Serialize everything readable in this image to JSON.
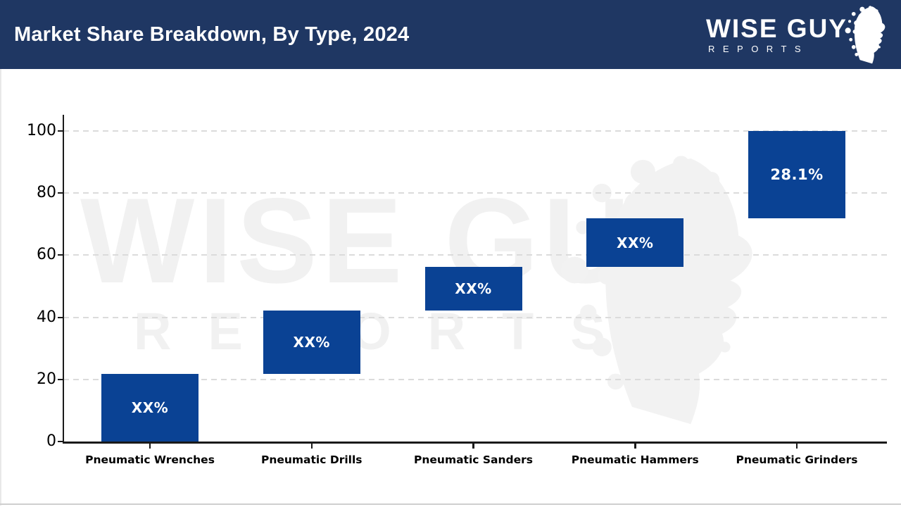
{
  "header": {
    "title": "Market Share Breakdown, By Type, 2024",
    "logo": {
      "line1": "WISE GUY",
      "line2": "REPORTS"
    }
  },
  "watermark": {
    "line1": "WISE GUY",
    "line2": "REPORTS"
  },
  "chart_data": {
    "type": "bar",
    "subtype": "waterfall",
    "title": "Market Share Breakdown, By Type, 2024",
    "categories": [
      "Pneumatic Wrenches",
      "Pneumatic Drills",
      "Pneumatic Sanders",
      "Pneumatic Hammers",
      "Pneumatic Grinders"
    ],
    "series": [
      {
        "name": "Market share (%)",
        "values": [
          21.8,
          20.4,
          14.0,
          15.7,
          28.1
        ],
        "cumulative": [
          21.8,
          42.2,
          56.2,
          71.9,
          100.0
        ],
        "bar_labels": [
          "XX%",
          "XX%",
          "XX%",
          "XX%",
          "28.1%"
        ]
      }
    ],
    "xlabel": "",
    "ylabel": "",
    "ylim": [
      0,
      100
    ],
    "yticks": [
      0,
      20,
      40,
      60,
      80,
      100
    ],
    "grid": "horizontal-dashed",
    "legend": "none",
    "colors": {
      "bar": "#0A4294",
      "bar_label": "#FFFFFF",
      "grid": "#DBDBDB",
      "axis": "#1A1A1A",
      "header_bg": "#1F3763",
      "watermark": "#F1F1F1"
    }
  }
}
